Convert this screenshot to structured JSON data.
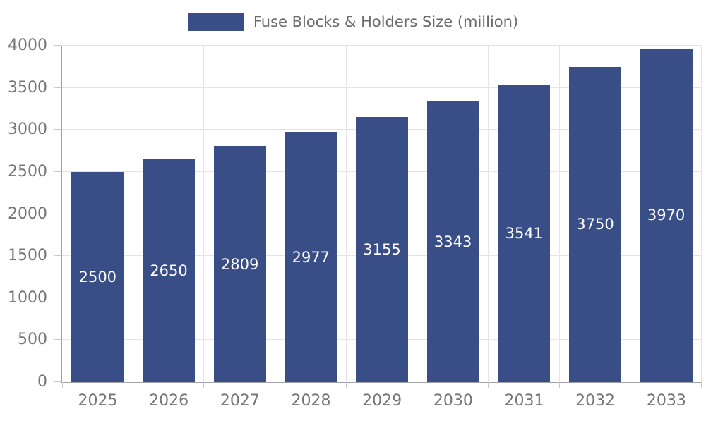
{
  "chart_data": {
    "type": "bar",
    "title": "Fuse Blocks & Holders Size (million)",
    "categories": [
      "2025",
      "2026",
      "2027",
      "2028",
      "2029",
      "2030",
      "2031",
      "2032",
      "2033"
    ],
    "values": [
      2500,
      2650,
      2809,
      2977,
      3155,
      3343,
      3541,
      3750,
      3970
    ],
    "series": [
      {
        "name": "Fuse Blocks & Holders Size (million)",
        "values": [
          2500,
          2650,
          2809,
          2977,
          3155,
          3343,
          3541,
          3750,
          3970
        ]
      }
    ],
    "xlabel": "",
    "ylabel": "",
    "ylim": [
      0,
      4000
    ],
    "y_ticks": [
      0,
      500,
      1000,
      1500,
      2000,
      2500,
      3000,
      3500,
      4000
    ],
    "grid": true,
    "legend_position": "top-center",
    "value_labels_inside_bars": true,
    "colors": {
      "bar": "#394D86",
      "bar_value_label": "#FFFFFF",
      "axis_line": "#A1A1A8",
      "tick_mark": "#C6C9D0",
      "gridline": "#E3E3E8",
      "tick_label_text": "#76767A",
      "legend_text": "#6A6A6F",
      "background": "#FFFFFF"
    }
  }
}
